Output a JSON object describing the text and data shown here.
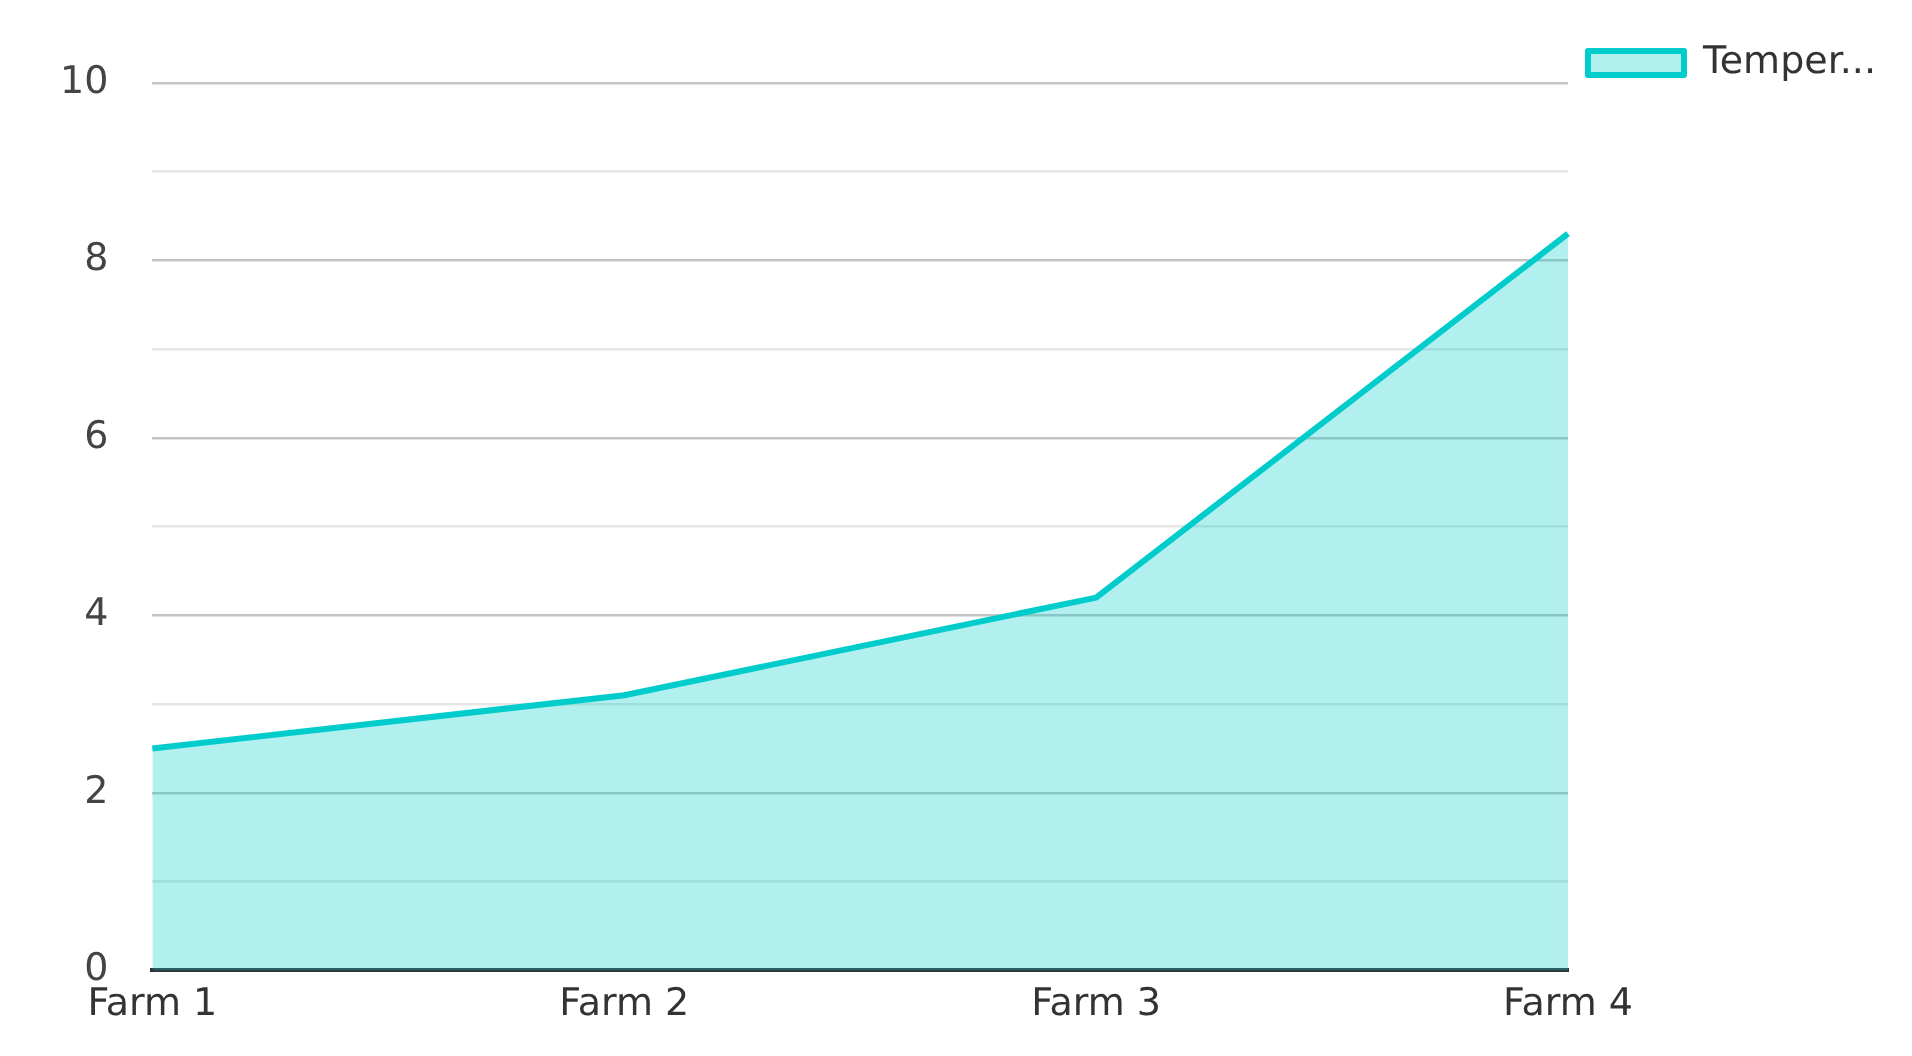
{
  "chart_data": {
    "type": "area",
    "categories": [
      "Farm 1",
      "Farm 2",
      "Farm 3",
      "Farm 4"
    ],
    "series": [
      {
        "name": "Temper...",
        "color": "#00cccc",
        "values": [
          2.5,
          3.1,
          4.2,
          8.3
        ]
      }
    ],
    "ylim": [
      0,
      10
    ],
    "yticks": [
      0,
      {
        "value": 1,
        "label": null
      },
      2,
      {
        "value": 3,
        "label": null
      },
      4,
      {
        "value": 5,
        "label": null
      },
      6,
      {
        "value": 7,
        "label": null
      },
      8,
      {
        "value": 9,
        "label": null
      },
      10
    ],
    "grid": "y",
    "legend": "top right"
  }
}
